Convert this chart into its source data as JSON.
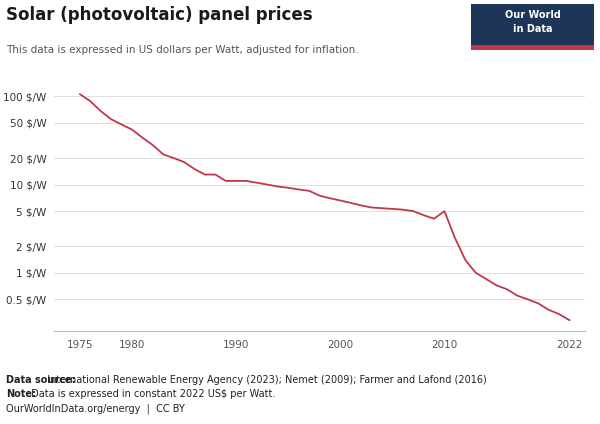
{
  "title": "Solar (photovoltaic) panel prices",
  "subtitle": "This data is expressed in US dollars per Watt, adjusted for inflation.",
  "line_color": "#c0384b",
  "background_color": "#ffffff",
  "x_years": [
    1975,
    1976,
    1977,
    1978,
    1979,
    1980,
    1981,
    1982,
    1983,
    1984,
    1985,
    1986,
    1987,
    1988,
    1989,
    1990,
    1991,
    1992,
    1993,
    1994,
    1995,
    1996,
    1997,
    1998,
    1999,
    2000,
    2001,
    2002,
    2003,
    2004,
    2005,
    2006,
    2007,
    2008,
    2009,
    2010,
    2011,
    2012,
    2013,
    2014,
    2015,
    2016,
    2017,
    2018,
    2019,
    2020,
    2021,
    2022
  ],
  "y_values": [
    106,
    88,
    68,
    55,
    48,
    42,
    34,
    28,
    22,
    20,
    18,
    15,
    13,
    13,
    11,
    11,
    11,
    10.5,
    10,
    9.5,
    9.2,
    8.8,
    8.5,
    7.5,
    7.0,
    6.6,
    6.2,
    5.8,
    5.5,
    5.4,
    5.3,
    5.2,
    5.0,
    4.5,
    4.1,
    5.0,
    2.5,
    1.4,
    1.0,
    0.85,
    0.72,
    0.65,
    0.55,
    0.5,
    0.45,
    0.38,
    0.34,
    0.29
  ],
  "ytick_values": [
    0.5,
    1,
    2,
    5,
    10,
    20,
    50,
    100
  ],
  "ytick_labels": [
    "0.5 $/W",
    "1 $/W",
    "2 $/W",
    "5 $/W",
    "10 $/W",
    "20 $/W",
    "50 $/W",
    "100 $/W"
  ],
  "xtick_values": [
    1975,
    1980,
    1990,
    2000,
    2010,
    2022
  ],
  "xtick_labels": [
    "1975",
    "1980",
    "1990",
    "2000",
    "2010",
    "2022"
  ],
  "xlim": [
    1972.5,
    2023.5
  ],
  "ylim_log": [
    0.22,
    160
  ],
  "footer_bold_1": "Data source:",
  "footer_rest_1": " International Renewable Energy Agency (2023); Nemet (2009); Farmer and Lafond (2016)",
  "footer_bold_2": "Note:",
  "footer_rest_2": " Data is expressed in constant 2022 US$ per Watt.",
  "footer_line_3": "OurWorldInData.org/energy  |  CC BY",
  "owid_box_color": "#1d3557",
  "owid_accent_color": "#c0384b",
  "owid_text": "Our World\nin Data"
}
